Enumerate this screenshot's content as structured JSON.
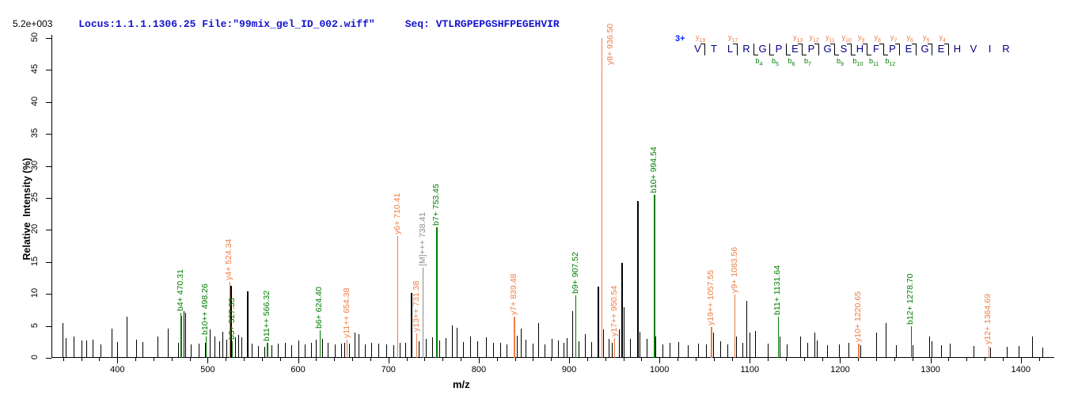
{
  "header": {
    "locus_file": "Locus:1.1.1.1306.25 File:\"99mix_gel_ID_002.wiff\"",
    "seq_text": "Seq: VTLRGPEPGSHFPEGEHVIR",
    "intensity_scale": "5.2e+003"
  },
  "colors": {
    "header_blue": "#1414cc",
    "y_ion": "#ef7d45",
    "b_ion": "#007d00",
    "precursor": "#8c8c8c",
    "black": "#000000",
    "sequence_letters": "#000080",
    "charge_blue": "#0026ff"
  },
  "axes": {
    "x_label": "m/z",
    "y_label": "Relative  Intensity (%)",
    "x_range": [
      327,
      1437
    ],
    "x_major_ticks": [
      400,
      500,
      600,
      700,
      800,
      900,
      1000,
      1100,
      1200,
      1300,
      1400
    ],
    "x_minor_step": 20,
    "y_range": [
      0,
      50
    ],
    "y_ticks": [
      0,
      5,
      10,
      15,
      20,
      25,
      30,
      35,
      40,
      45,
      50
    ]
  },
  "sequence_panel": {
    "charge": "3+",
    "residues": [
      "V",
      "T",
      "L",
      "R",
      "G",
      "P",
      "E",
      "P",
      "G",
      "S",
      "H",
      "F",
      "P",
      "E",
      "G",
      "E",
      "H",
      "V",
      "I",
      "R"
    ],
    "marks": [
      {
        "gap_after": 1,
        "y_sub": "19",
        "b_sub": null
      },
      {
        "gap_after": 3,
        "y_sub": "17",
        "b_sub": null
      },
      {
        "gap_after": 4,
        "y_sub": null,
        "b_sub": "4"
      },
      {
        "gap_after": 5,
        "y_sub": null,
        "b_sub": "5"
      },
      {
        "gap_after": 6,
        "y_sub": null,
        "b_sub": "6"
      },
      {
        "gap_after": 7,
        "y_sub": "13",
        "b_sub": "7"
      },
      {
        "gap_after": 8,
        "y_sub": "12",
        "b_sub": null
      },
      {
        "gap_after": 9,
        "y_sub": "11",
        "b_sub": "9"
      },
      {
        "gap_after": 10,
        "y_sub": "10",
        "b_sub": "10"
      },
      {
        "gap_after": 11,
        "y_sub": "9",
        "b_sub": "11"
      },
      {
        "gap_after": 12,
        "y_sub": "8",
        "b_sub": "12"
      },
      {
        "gap_after": 13,
        "y_sub": "7",
        "b_sub": null
      },
      {
        "gap_after": 14,
        "y_sub": "6",
        "b_sub": null
      },
      {
        "gap_after": 15,
        "y_sub": "5",
        "b_sub": null
      },
      {
        "gap_after": 16,
        "y_sub": "4",
        "b_sub": null
      }
    ]
  },
  "chart_data": {
    "type": "bar",
    "subtype": "centroid-mass-spectrum",
    "title": "",
    "xlabel": "m/z",
    "ylabel": "Relative  Intensity (%)",
    "xlim": [
      327,
      1437
    ],
    "ylim": [
      0,
      50
    ],
    "grid": false,
    "annotated_peaks": [
      {
        "label": "b4+ 470.31",
        "mz": 470.31,
        "intensity_pct": 7.0,
        "type": "b"
      },
      {
        "label": "b10++ 498.26",
        "mz": 498.26,
        "intensity_pct": 3.4,
        "type": "b"
      },
      {
        "label": "y4+ 524.34",
        "mz": 524.34,
        "intensity_pct": 11.9,
        "type": "y"
      },
      {
        "label": "b5+ 527.33",
        "mz": 527.33,
        "intensity_pct": 2.6,
        "type": "b"
      },
      {
        "label": "b11++ 566.32",
        "mz": 566.32,
        "intensity_pct": 2.3,
        "type": "b"
      },
      {
        "label": "b6+ 624.40",
        "mz": 624.4,
        "intensity_pct": 4.3,
        "type": "b"
      },
      {
        "label": "y11++ 654.38",
        "mz": 654.38,
        "intensity_pct": 2.9,
        "type": "y"
      },
      {
        "label": "y6+ 710.41",
        "mz": 710.41,
        "intensity_pct": 19.1,
        "type": "y"
      },
      {
        "label": "y13++ 731.38",
        "mz": 731.38,
        "intensity_pct": 3.8,
        "type": "y"
      },
      {
        "label": "[M]+++ 738.41",
        "mz": 738.41,
        "intensity_pct": 14.1,
        "type": "M"
      },
      {
        "label": "b7+ 753.45",
        "mz": 753.45,
        "intensity_pct": 20.4,
        "type": "b"
      },
      {
        "label": "y7+ 839.48",
        "mz": 839.48,
        "intensity_pct": 6.4,
        "type": "y"
      },
      {
        "label": "b9+ 907.52",
        "mz": 907.52,
        "intensity_pct": 9.8,
        "type": "b"
      },
      {
        "label": "y8+ 936.50",
        "mz": 936.5,
        "intensity_pct": 50.0,
        "type": "y"
      },
      {
        "label": "y17++ 950.54",
        "mz": 950.54,
        "intensity_pct": 3.1,
        "type": "y"
      },
      {
        "label": "b10+ 994.54",
        "mz": 994.54,
        "intensity_pct": 25.5,
        "type": "b"
      },
      {
        "label": "y19++ 1057.55",
        "mz": 1057.55,
        "intensity_pct": 4.8,
        "type": "y"
      },
      {
        "label": "y9+ 1083.56",
        "mz": 1083.56,
        "intensity_pct": 9.9,
        "type": "y"
      },
      {
        "label": "b11+ 1131.64",
        "mz": 1131.64,
        "intensity_pct": 6.4,
        "type": "b"
      },
      {
        "label": "y10+ 1220.65",
        "mz": 1220.65,
        "intensity_pct": 2.2,
        "type": "y"
      },
      {
        "label": "b12+ 1278.70",
        "mz": 1278.7,
        "intensity_pct": 5.0,
        "type": "b"
      },
      {
        "label": "y12+ 1364.69",
        "mz": 1364.69,
        "intensity_pct": 1.8,
        "type": "y"
      }
    ],
    "unannotated_peaks": [
      [
        339.6,
        5.4
      ],
      [
        343,
        3.1
      ],
      [
        352,
        3.3
      ],
      [
        361,
        2.7
      ],
      [
        366,
        2.7
      ],
      [
        373,
        2.9
      ],
      [
        382,
        2.1
      ],
      [
        394,
        4.6
      ],
      [
        400,
        2.5
      ],
      [
        410.5,
        6.4
      ],
      [
        421,
        2.8
      ],
      [
        428,
        2.5
      ],
      [
        445,
        3.3
      ],
      [
        456,
        4.6
      ],
      [
        468,
        2.3
      ],
      [
        471.3,
        6.5,
        "b"
      ],
      [
        473.4,
        7.3
      ],
      [
        475.4,
        7.1
      ],
      [
        482,
        2.1
      ],
      [
        490,
        2.2
      ],
      [
        497,
        2.4
      ],
      [
        503,
        4.4
      ],
      [
        508,
        3.4
      ],
      [
        513,
        2.6
      ],
      [
        517,
        4.1
      ],
      [
        521,
        2.8
      ],
      [
        526.3,
        11.3
      ],
      [
        531,
        3.2
      ],
      [
        534.5,
        3.6
      ],
      [
        538,
        3.2
      ],
      [
        544,
        10.4
      ],
      [
        549,
        2.2
      ],
      [
        556,
        1.9
      ],
      [
        563,
        1.7
      ],
      [
        571,
        2.0
      ],
      [
        578,
        2.2
      ],
      [
        586,
        2.4
      ],
      [
        593,
        2.0
      ],
      [
        601,
        2.7
      ],
      [
        608,
        2.1
      ],
      [
        615,
        2.4
      ],
      [
        620,
        2.8
      ],
      [
        627,
        3.0
      ],
      [
        633,
        2.4
      ],
      [
        641,
        2.1
      ],
      [
        648,
        2.2
      ],
      [
        652,
        2.4
      ],
      [
        657,
        2.2
      ],
      [
        663,
        4.0
      ],
      [
        667.5,
        3.7
      ],
      [
        674,
        2.1
      ],
      [
        681,
        2.4
      ],
      [
        689,
        2.2
      ],
      [
        698,
        2.1
      ],
      [
        706,
        2.0
      ],
      [
        713,
        2.3
      ],
      [
        719,
        2.4
      ],
      [
        726,
        10.2
      ],
      [
        734,
        2.6
      ],
      [
        742,
        3.0
      ],
      [
        749,
        3.2
      ],
      [
        757,
        2.7
      ],
      [
        764,
        3.1
      ],
      [
        771,
        5.1
      ],
      [
        776,
        4.7
      ],
      [
        783,
        2.5
      ],
      [
        791,
        3.3
      ],
      [
        799,
        2.6
      ],
      [
        808,
        3.2
      ],
      [
        816,
        2.3
      ],
      [
        824,
        2.4
      ],
      [
        831,
        2.1
      ],
      [
        843,
        3.5
      ],
      [
        847,
        4.6
      ],
      [
        852,
        2.9
      ],
      [
        860,
        2.2
      ],
      [
        866,
        5.4
      ],
      [
        873,
        2.1
      ],
      [
        881,
        3.0
      ],
      [
        888,
        2.7
      ],
      [
        894,
        2.3
      ],
      [
        898,
        3.1
      ],
      [
        904,
        7.3
      ],
      [
        911,
        2.6
      ],
      [
        918,
        3.7
      ],
      [
        925,
        2.5
      ],
      [
        932.6,
        11.2
      ],
      [
        938,
        4.5
      ],
      [
        944,
        3.0
      ],
      [
        948,
        2.4
      ],
      [
        956,
        4.4
      ],
      [
        958.5,
        14.8
      ],
      [
        961,
        7.9
      ],
      [
        968,
        3.0
      ],
      [
        976,
        24.5
      ],
      [
        978.5,
        4.1
      ],
      [
        986,
        3.0
      ],
      [
        996,
        3.4
      ],
      [
        1004,
        2.1
      ],
      [
        1012,
        2.3
      ],
      [
        1021,
        2.5
      ],
      [
        1032,
        2.0
      ],
      [
        1043,
        2.2
      ],
      [
        1052,
        2.1
      ],
      [
        1059.5,
        4.0
      ],
      [
        1068,
        2.6
      ],
      [
        1076,
        2.1
      ],
      [
        1085.5,
        3.4
      ],
      [
        1092,
        2.4
      ],
      [
        1097,
        8.9
      ],
      [
        1100,
        4.0
      ],
      [
        1106,
        4.2
      ],
      [
        1120,
        2.2
      ],
      [
        1133.6,
        3.4
      ],
      [
        1141,
        2.1
      ],
      [
        1156,
        3.3
      ],
      [
        1164,
        2.3
      ],
      [
        1172,
        4.0
      ],
      [
        1175,
        2.7
      ],
      [
        1186,
        2.0
      ],
      [
        1199,
        2.1
      ],
      [
        1210,
        2.3
      ],
      [
        1222.7,
        2.0
      ],
      [
        1240,
        3.9
      ],
      [
        1251,
        5.4
      ],
      [
        1262,
        2.0
      ],
      [
        1281,
        2.0
      ],
      [
        1299,
        3.4
      ],
      [
        1301.5,
        2.6
      ],
      [
        1312,
        2.0
      ],
      [
        1322,
        2.2
      ],
      [
        1348,
        1.9
      ],
      [
        1366.7,
        1.6
      ],
      [
        1385,
        1.7
      ],
      [
        1398,
        1.8
      ],
      [
        1413,
        3.3
      ],
      [
        1424,
        1.6
      ]
    ]
  }
}
